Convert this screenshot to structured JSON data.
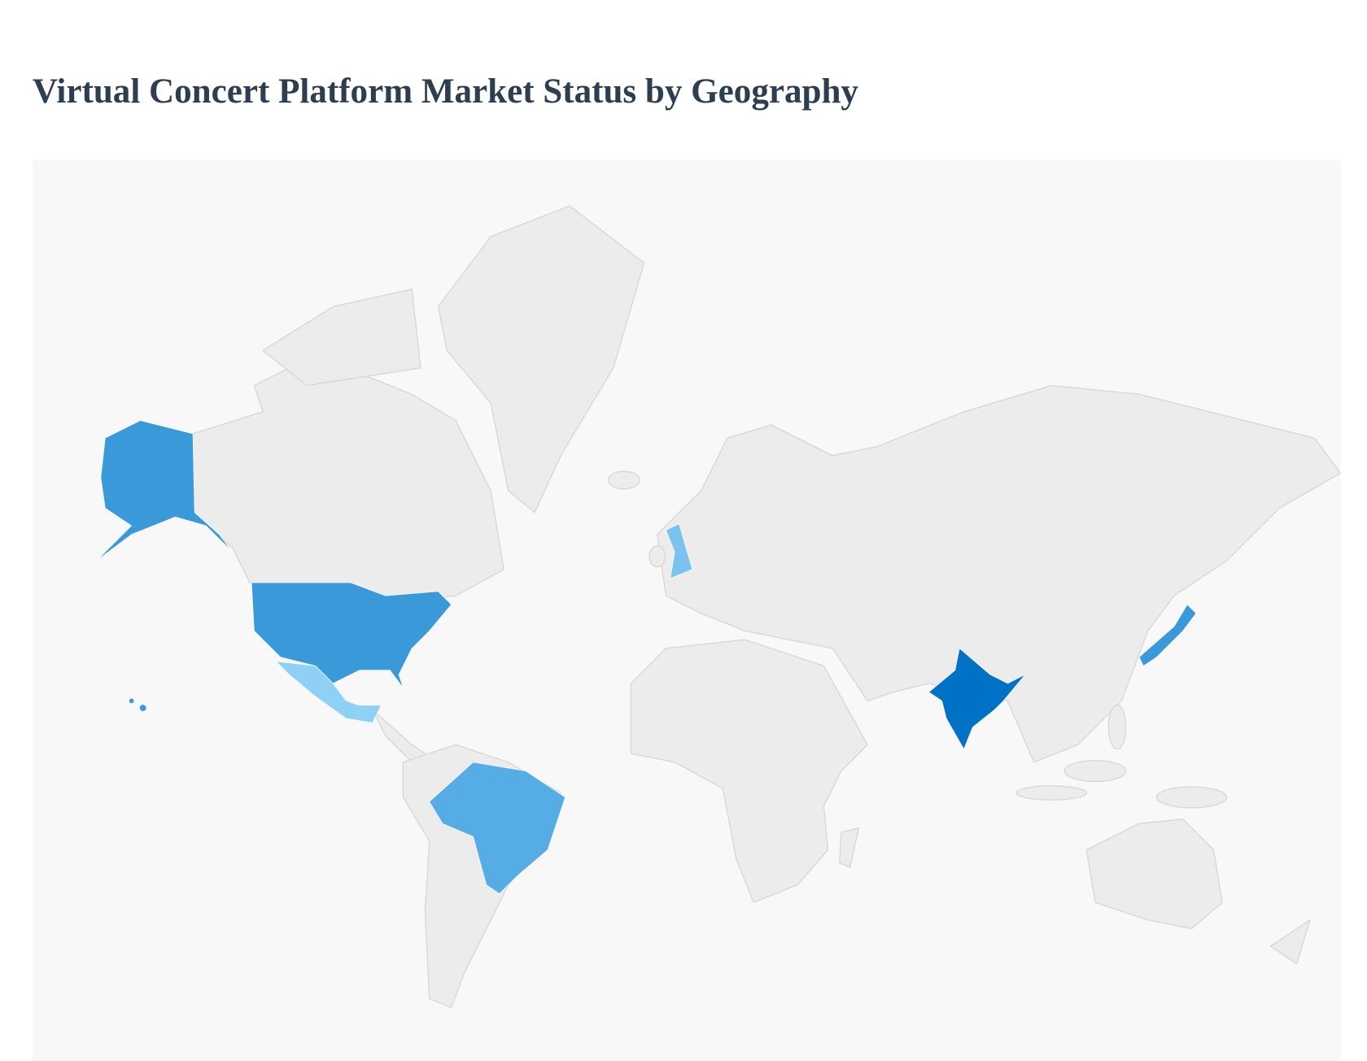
{
  "title": "Virtual Concert Platform Market Status by Geography",
  "map": {
    "background": "#f8f8f8",
    "land_color": "#ececec",
    "highlight_colors": [
      "#0072c6",
      "#3a9ad9",
      "#56ade6",
      "#7cc2ee",
      "#8fd0f5"
    ]
  }
}
